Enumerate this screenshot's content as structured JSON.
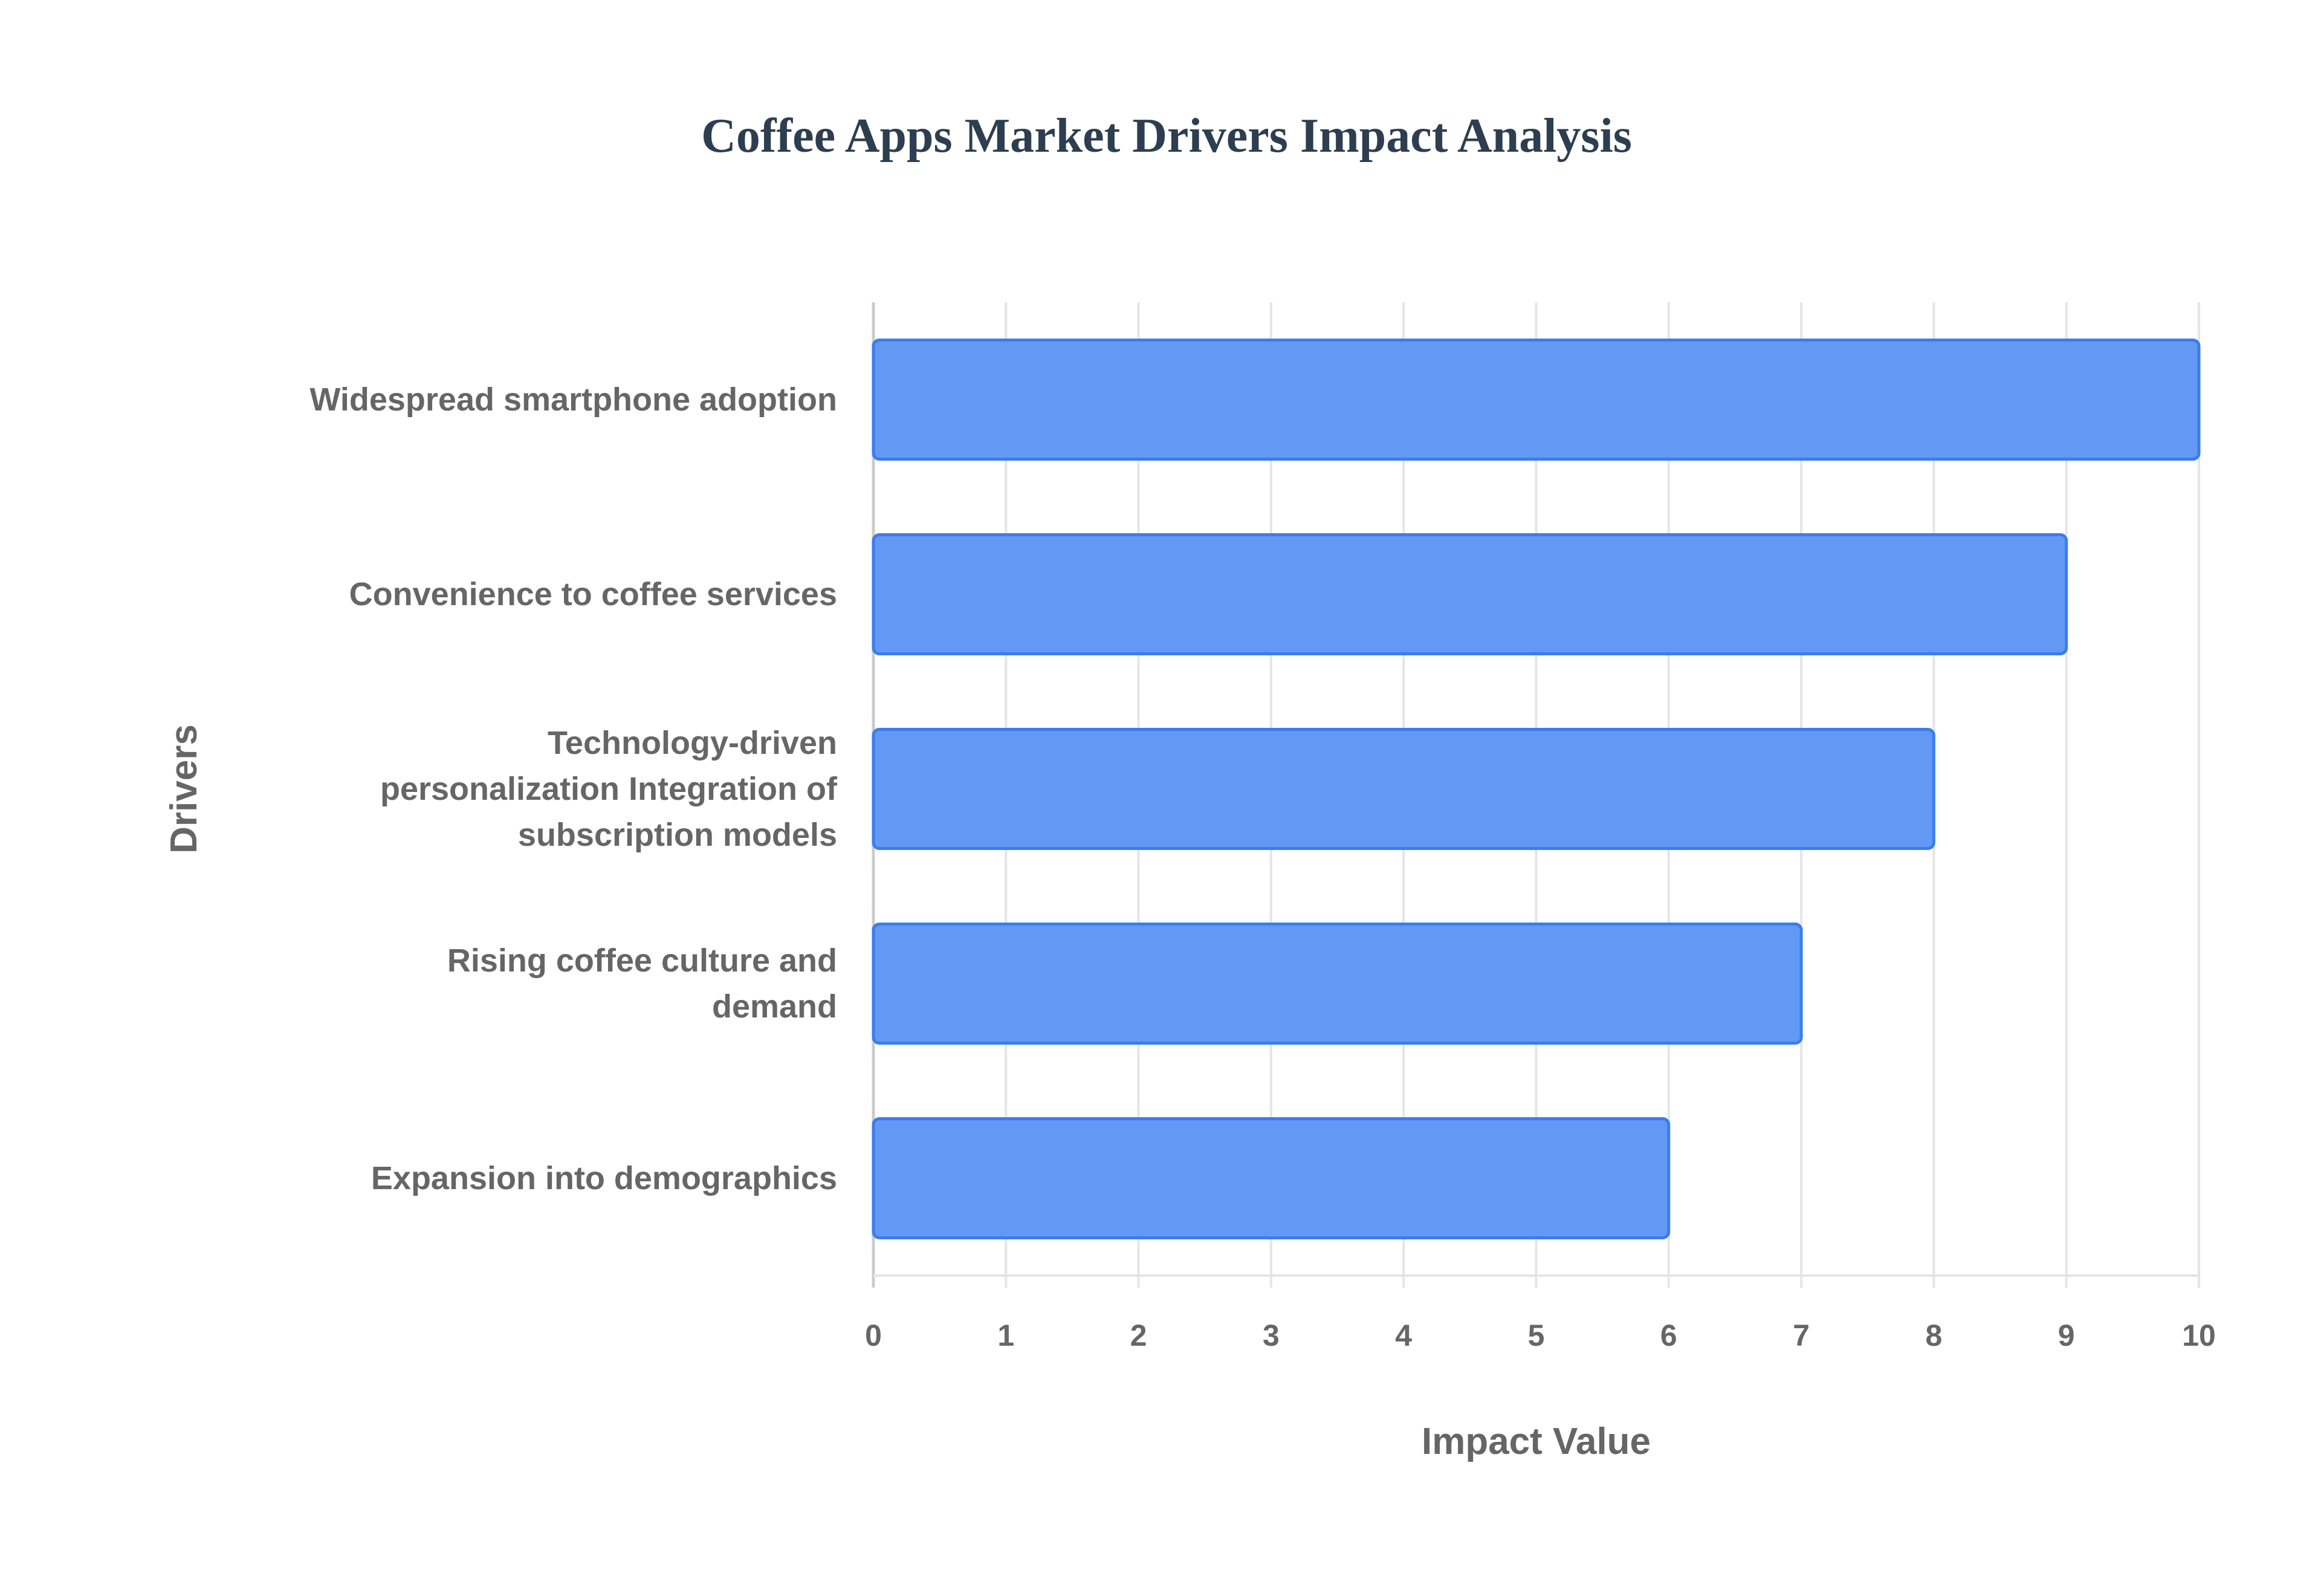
{
  "chart_data": {
    "type": "bar",
    "orientation": "horizontal",
    "title": "Coffee Apps Market Drivers Impact Analysis",
    "xlabel": "Impact Value",
    "ylabel": "Drivers",
    "categories": [
      [
        "Widespread smartphone adoption"
      ],
      [
        "Convenience to coffee services"
      ],
      [
        "Technology-driven",
        "personalization Integration of",
        "subscription models"
      ],
      [
        "Rising coffee culture and",
        "demand"
      ],
      [
        "Expansion into demographics"
      ]
    ],
    "values": [
      10,
      9,
      8,
      7,
      6
    ],
    "xlim": [
      0,
      10
    ],
    "xticks": [
      "0",
      "1",
      "2",
      "3",
      "4",
      "5",
      "6",
      "7",
      "8",
      "9",
      "10"
    ],
    "grid": true,
    "colors": {
      "bar_fill": "#6399f5",
      "bar_border": "#3b7ded",
      "grid": "#e5e5e5",
      "axis": "#cccccc"
    }
  }
}
